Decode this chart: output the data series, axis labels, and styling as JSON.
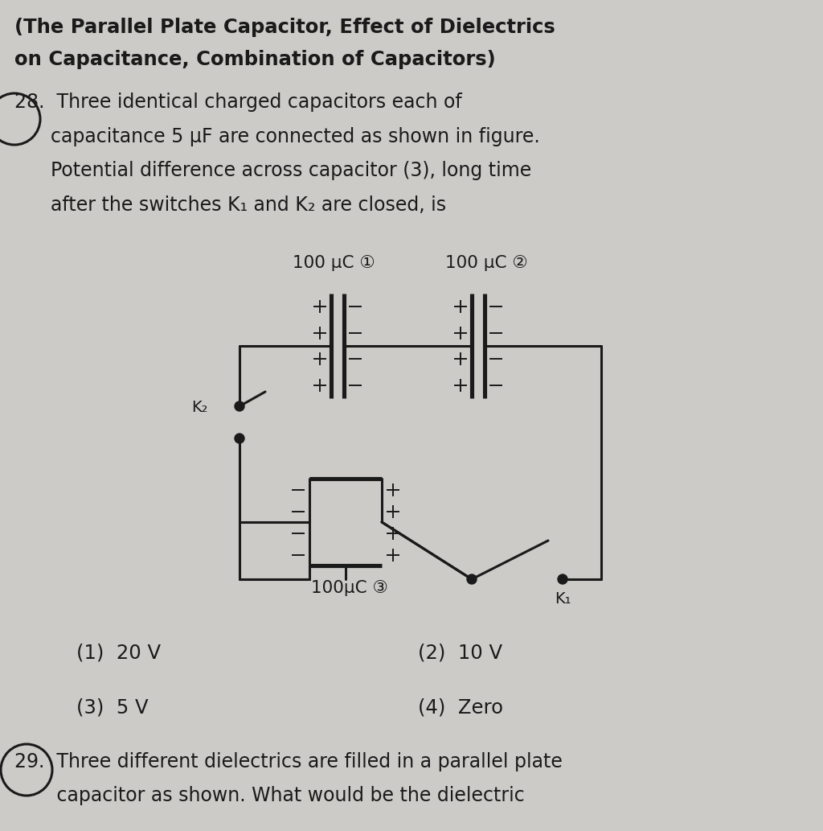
{
  "bg_color": "#cccbc8",
  "title_line1": "(The Parallel Plate Capacitor, Effect of Dielectrics",
  "title_line2": "on Capacitance, Combination of Capacitors)",
  "q28_line1": "28.  Three identical charged capacitors each of",
  "q28_line2": "      capacitance 5 μF are connected as shown in figure.",
  "q28_line3": "      Potential difference across capacitor (3), long time",
  "q28_line4": "      after the switches K₁ and K₂ are closed, is",
  "cap1_label": "100 μC ①",
  "cap2_label": "100 μC ②",
  "cap3_label": "100μC ③",
  "k1_label": "K₁",
  "k2_label": "K₂",
  "opt1": "(1)  20 V",
  "opt2": "(2)  10 V",
  "opt3": "(3)  5 V",
  "opt4": "(4)  Zero",
  "q29_line1": "29.  Three different dielectrics are filled in a parallel plate",
  "q29_line2": "       capacitor as shown. What would be the dielectric",
  "text_color": "#1a1a1a",
  "circuit_color": "#1a1a1a",
  "title_fontsize": 17.5,
  "body_fontsize": 17.0,
  "opt_fontsize": 17.5,
  "circ_lw": 2.2,
  "sign_lw": 1.4
}
